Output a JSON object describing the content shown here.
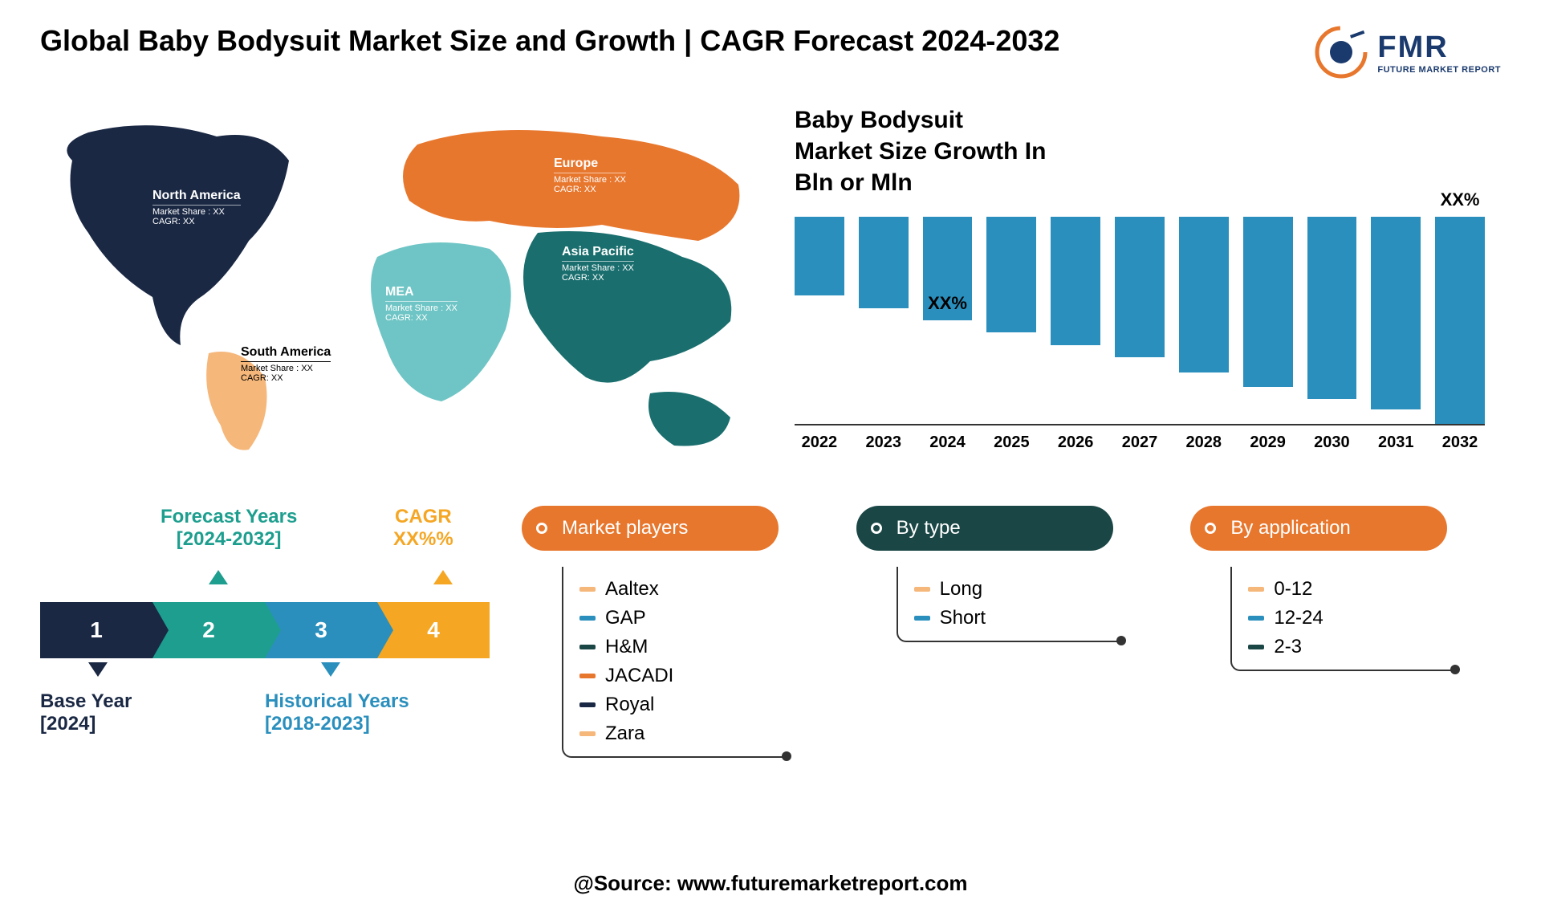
{
  "title": "Global Baby Bodysuit Market Size and Growth | CAGR Forecast 2024-2032",
  "logo": {
    "fmr": "FMR",
    "sub": "FUTURE MARKET REPORT"
  },
  "map": {
    "regions": [
      {
        "key": "na",
        "name": "North America",
        "share": "Market Share : XX",
        "cagr": "CAGR: XX",
        "color": "#1a2844"
      },
      {
        "key": "sa",
        "name": "South America",
        "share": "Market Share : XX",
        "cagr": "CAGR: XX",
        "color": "#f5b77a"
      },
      {
        "key": "eu",
        "name": "Europe",
        "share": "Market Share : XX",
        "cagr": "CAGR: XX",
        "color": "#e8772e"
      },
      {
        "key": "mea",
        "name": "MEA",
        "share": "Market Share : XX",
        "cagr": "CAGR: XX",
        "color": "#6fc5c5"
      },
      {
        "key": "ap",
        "name": "Asia Pacific",
        "share": "Market Share : XX",
        "cagr": "CAGR: XX",
        "color": "#1a6e6e"
      }
    ]
  },
  "chart": {
    "title_l1": "Baby Bodysuit",
    "title_l2": "Market Size Growth In",
    "title_l3": "Bln or Mln",
    "type": "bar",
    "bar_color": "#2a8fbd",
    "axis_color": "#333333",
    "label_fontsize": 20,
    "years": [
      "2022",
      "2023",
      "2024",
      "2025",
      "2026",
      "2027",
      "2028",
      "2029",
      "2030",
      "2031",
      "2032"
    ],
    "values": [
      38,
      44,
      50,
      56,
      62,
      68,
      75,
      82,
      88,
      93,
      100
    ],
    "annotations": [
      {
        "index": 2,
        "text": "XX%"
      },
      {
        "index": 10,
        "text": "XX%"
      }
    ]
  },
  "timeline": {
    "forecast_label": "Forecast Years",
    "forecast_range": "[2024-2032]",
    "cagr_label": "CAGR",
    "cagr_value": "XX%%",
    "base_label": "Base Year",
    "base_value": "[2024]",
    "hist_label": "Historical Years",
    "hist_value": "[2018-2023]",
    "segments": [
      {
        "n": "1",
        "color": "#1a2844"
      },
      {
        "n": "2",
        "color": "#1d9e8e"
      },
      {
        "n": "3",
        "color": "#2a8fbd"
      },
      {
        "n": "4",
        "color": "#f5a623"
      }
    ]
  },
  "sections": [
    {
      "title": "Market players",
      "pill_color": "#e8772e",
      "items": [
        {
          "label": "Aaltex",
          "mark": "#f5b77a"
        },
        {
          "label": "GAP",
          "mark": "#2a8fbd"
        },
        {
          "label": "H&M",
          "mark": "#1a4645"
        },
        {
          "label": "JACADI",
          "mark": "#e8772e"
        },
        {
          "label": "Royal",
          "mark": "#1a2844"
        },
        {
          "label": "Zara",
          "mark": "#f5b77a"
        }
      ]
    },
    {
      "title": "By type",
      "pill_color": "#1a4645",
      "items": [
        {
          "label": "Long",
          "mark": "#f5b77a"
        },
        {
          "label": "Short",
          "mark": "#2a8fbd"
        }
      ]
    },
    {
      "title": "By application",
      "pill_color": "#e8772e",
      "items": [
        {
          "label": "0-12",
          "mark": "#f5b77a"
        },
        {
          "label": "12-24",
          "mark": "#2a8fbd"
        },
        {
          "label": "2-3",
          "mark": "#1a4645"
        }
      ]
    }
  ],
  "source": "@Source: www.futuremarketreport.com"
}
